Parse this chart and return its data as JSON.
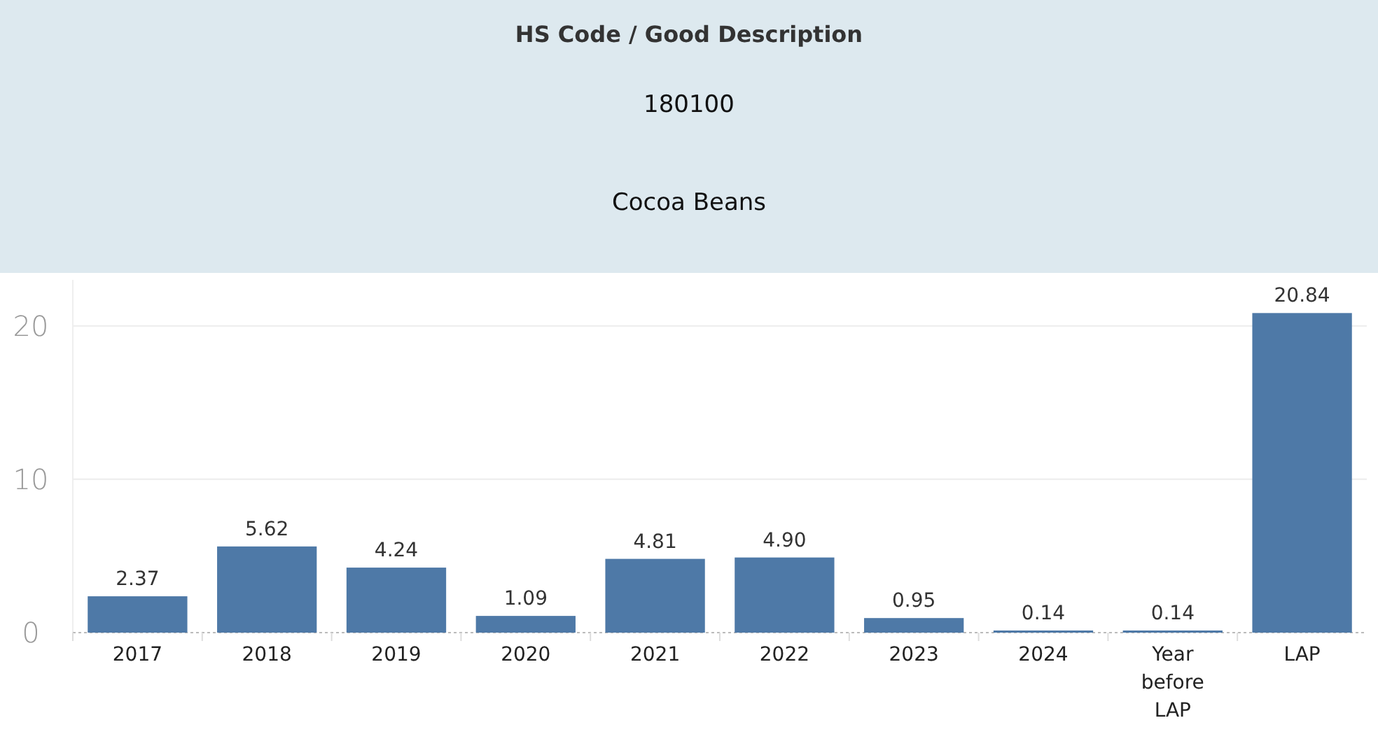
{
  "chart_data": {
    "type": "bar",
    "title": "HS Code / Good Description",
    "subtitle": "180100",
    "annotations": [
      "Cocoa Beans"
    ],
    "categories": [
      "2017",
      "2018",
      "2019",
      "2020",
      "2021",
      "2022",
      "2023",
      "2024",
      "Year before LAP",
      "LAP"
    ],
    "values": [
      2.37,
      5.62,
      4.24,
      1.09,
      4.81,
      4.9,
      0.95,
      0.14,
      0.14,
      20.84
    ],
    "value_labels": [
      "2.37",
      "5.62",
      "4.24",
      "1.09",
      "4.81",
      "4.90",
      "0.95",
      "0.14",
      "0.14",
      "20.84"
    ],
    "color": "#4e79a7",
    "ylim": [
      0,
      23
    ],
    "yticks": [
      0,
      10,
      20
    ],
    "grid": "y"
  }
}
